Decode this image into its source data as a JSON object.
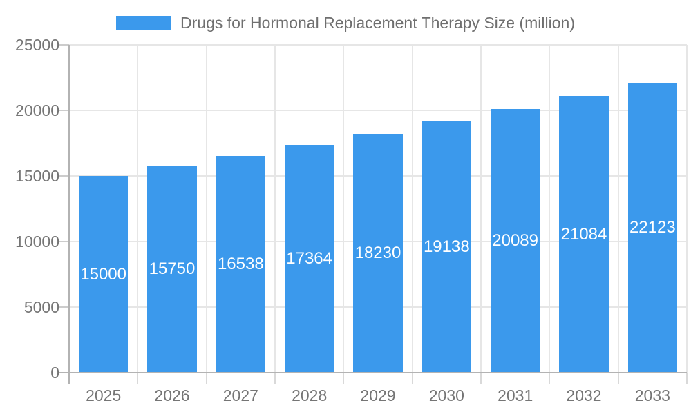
{
  "chart_data": {
    "type": "bar",
    "title": "Drugs for Hormonal Replacement Therapy Size (million)",
    "categories": [
      "2025",
      "2026",
      "2027",
      "2028",
      "2029",
      "2030",
      "2031",
      "2032",
      "2033"
    ],
    "values": [
      15000,
      15750,
      16538,
      17364,
      18230,
      19138,
      20089,
      21084,
      22123
    ],
    "xlabel": "",
    "ylabel": "",
    "ylim": [
      0,
      25000
    ],
    "yticks": [
      0,
      5000,
      10000,
      15000,
      20000,
      25000
    ],
    "grid": true,
    "legend_position": "top-center",
    "legend_entries": [
      "Drugs for Hormonal Replacement Therapy Size (million)"
    ],
    "value_labels_inside_bars": true
  },
  "colors": {
    "bar": "#3b99ec",
    "bar_value_text": "#ffffff",
    "axis_line": "#b3b3b3",
    "grid_line": "#e6e6e6",
    "tick_label_text": "#757575",
    "legend_text": "#6f6f6f",
    "background": "#ffffff"
  }
}
